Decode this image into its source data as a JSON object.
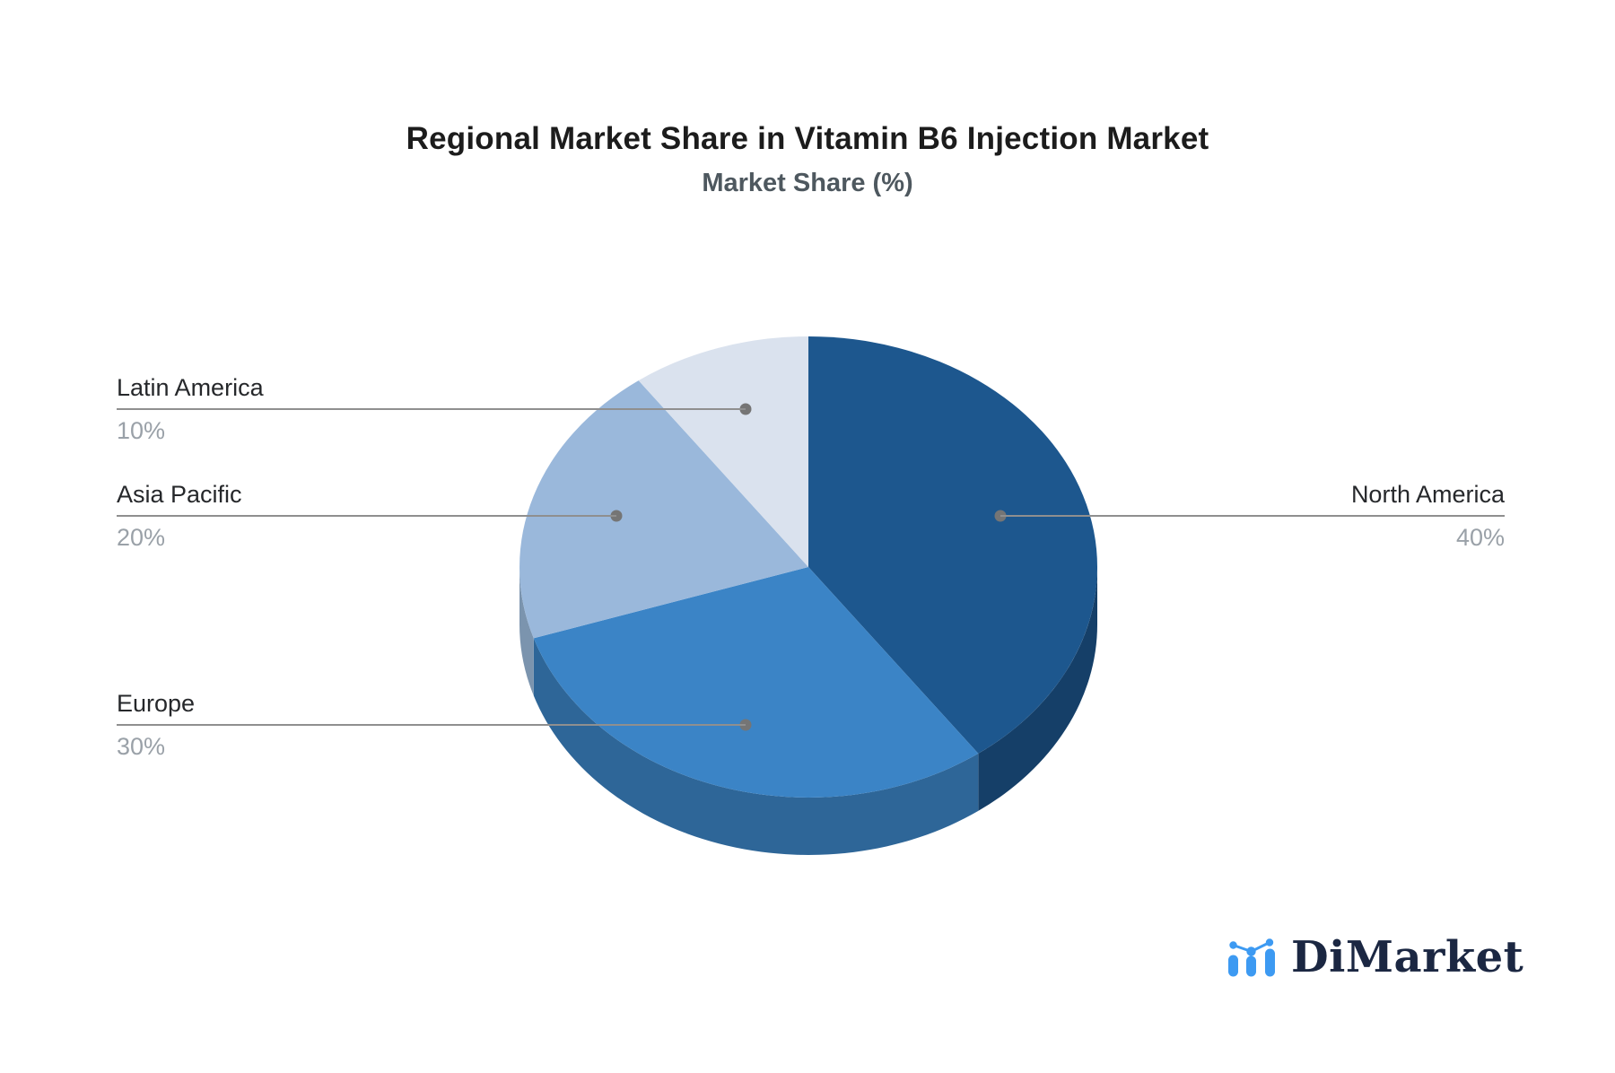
{
  "chart_data": {
    "type": "pie",
    "title": "Regional Market Share in Vitamin B6 Injection Market",
    "subtitle": "Market Share (%)",
    "unit": "%",
    "effect": "3d",
    "start_angle": "top",
    "direction": "clockwise",
    "background": "#ffffff",
    "leader_line_color": "#8f8f8f",
    "leader_dot_color": "#757575",
    "label_color": "#26282b",
    "pct_color": "#9aa1a8",
    "slices": [
      {
        "label": "North America",
        "value": 40,
        "pct_label": "40%",
        "color": "#1d578e",
        "side_color": "#153f68",
        "label_side": "right"
      },
      {
        "label": "Europe",
        "value": 30,
        "pct_label": "30%",
        "color": "#3b84c6",
        "side_color": "#2e6698",
        "label_side": "left"
      },
      {
        "label": "Asia Pacific",
        "value": 20,
        "pct_label": "20%",
        "color": "#9ab8db",
        "side_color": "#7b94ae",
        "label_side": "left"
      },
      {
        "label": "Latin America",
        "value": 10,
        "pct_label": "10%",
        "color": "#dae2ee",
        "side_color": "#aab3c2",
        "label_side": "left"
      }
    ]
  },
  "branding": {
    "logo_text": "DiMarket",
    "logo_icon": "bar-line-chart-icon",
    "logo_text_color": "#1b2742",
    "logo_icon_color": "#3d9af2"
  }
}
